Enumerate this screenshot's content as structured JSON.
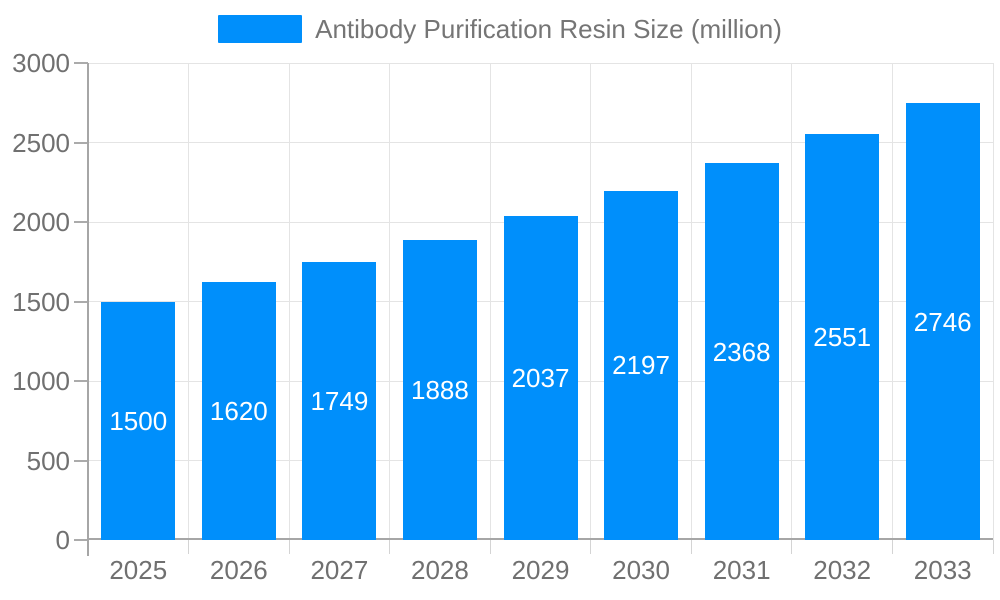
{
  "legend": {
    "label": "Antibody Purification Resin Size (million)"
  },
  "chart_data": {
    "type": "bar",
    "title": "Antibody Purification Resin Size (million)",
    "categories": [
      "2025",
      "2026",
      "2027",
      "2028",
      "2029",
      "2030",
      "2031",
      "2032",
      "2033"
    ],
    "series": [
      {
        "name": "Antibody Purification Resin Size (million)",
        "values": [
          1500,
          1620,
          1749,
          1888,
          2037,
          2197,
          2368,
          2551,
          2746
        ]
      }
    ],
    "xlabel": "",
    "ylabel": "",
    "ylim": [
      0,
      3000
    ],
    "yticks": [
      0,
      500,
      1000,
      1500,
      2000,
      2500,
      3000
    ],
    "grid": true,
    "legend_position": "top",
    "value_labels": "centered-in-bar",
    "colors": {
      "bar": "#008FFB",
      "value_label": "#FFFFFF",
      "axis_label": "#707070",
      "legend_label": "#757575",
      "gridline": "#E4E4E4",
      "minor_tick": "#D4D4D4",
      "axis_tick": "#ABABAB",
      "axis_line": "#A6A6A6",
      "background": "#FFFFFF"
    }
  }
}
